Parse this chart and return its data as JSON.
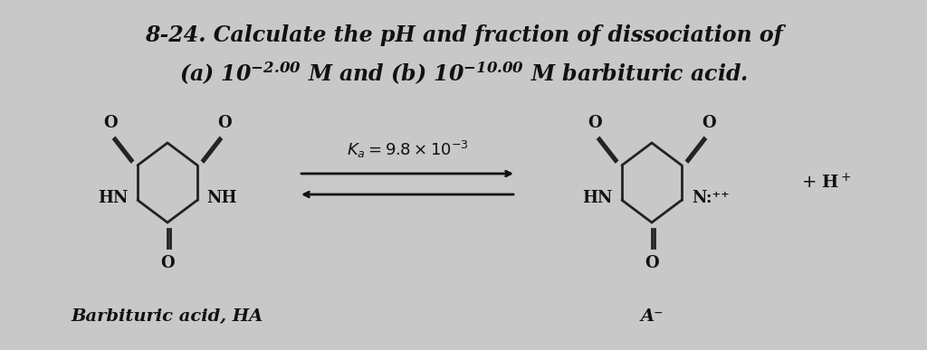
{
  "bg_color": "#c8c8c8",
  "title_line1": "8-24. Calculate the pH and fraction of dissociation of",
  "title_line2_parts": [
    {
      "text": "(a) 10",
      "style": "normal"
    },
    {
      "text": "−2.00",
      "style": "superscript"
    },
    {
      "text": " M and (b) 10",
      "style": "normal"
    },
    {
      "text": "−10.00",
      "style": "superscript"
    },
    {
      "text": " M barbituric acid.",
      "style": "normal"
    }
  ],
  "ka_text": "Kₐ = 9.8 × 10⁻³",
  "label_left": "Barbituric acid, HA",
  "label_right": "A⁻",
  "font_size_title": 17,
  "font_size_label": 14,
  "text_color": "#111111"
}
